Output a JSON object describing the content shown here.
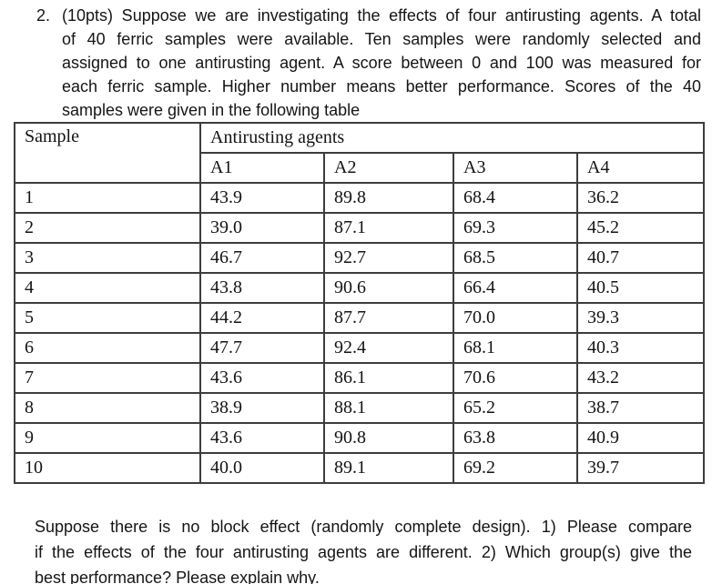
{
  "page": {
    "background": "#ffffff",
    "text_color": "#151515",
    "table_border_color": "#3d3d3d"
  },
  "question": {
    "number": "2.",
    "lines": [
      "(10pts) Suppose we are investigating the effects of four antirusting agents. A total",
      "of 40 ferric samples were available. Ten samples were randomly selected and",
      "assigned to one antirusting agent. A score between 0 and 100 was measured for",
      "each ferric sample. Higher number means better performance. Scores of the 40",
      "samples were given in the following table"
    ]
  },
  "table": {
    "sample_header": "Sample",
    "group_header": "Antirusting agents",
    "agent_headers": [
      "A1",
      "A2",
      "A3",
      "A4"
    ],
    "rows": [
      {
        "sample": "1",
        "values": [
          "43.9",
          "89.8",
          "68.4",
          "36.2"
        ]
      },
      {
        "sample": "2",
        "values": [
          "39.0",
          "87.1",
          "69.3",
          "45.2"
        ]
      },
      {
        "sample": "3",
        "values": [
          "46.7",
          "92.7",
          "68.5",
          "40.7"
        ]
      },
      {
        "sample": "4",
        "values": [
          "43.8",
          "90.6",
          "66.4",
          "40.5"
        ]
      },
      {
        "sample": "5",
        "values": [
          "44.2",
          "87.7",
          "70.0",
          "39.3"
        ]
      },
      {
        "sample": "6",
        "values": [
          "47.7",
          "92.4",
          "68.1",
          "40.3"
        ]
      },
      {
        "sample": "7",
        "values": [
          "43.6",
          "86.1",
          "70.6",
          "43.2"
        ]
      },
      {
        "sample": "8",
        "values": [
          "38.9",
          "88.1",
          "65.2",
          "38.7"
        ]
      },
      {
        "sample": "9",
        "values": [
          "43.6",
          "90.8",
          "63.8",
          "40.9"
        ]
      },
      {
        "sample": "10",
        "values": [
          "40.0",
          "89.1",
          "69.2",
          "39.7"
        ]
      }
    ]
  },
  "footer": {
    "lines": [
      "Suppose there is no block effect (randomly complete design). 1) Please compare",
      "if the effects of the four antirusting agents are different. 2) Which group(s) give the",
      "best performance? Please explain why."
    ]
  }
}
